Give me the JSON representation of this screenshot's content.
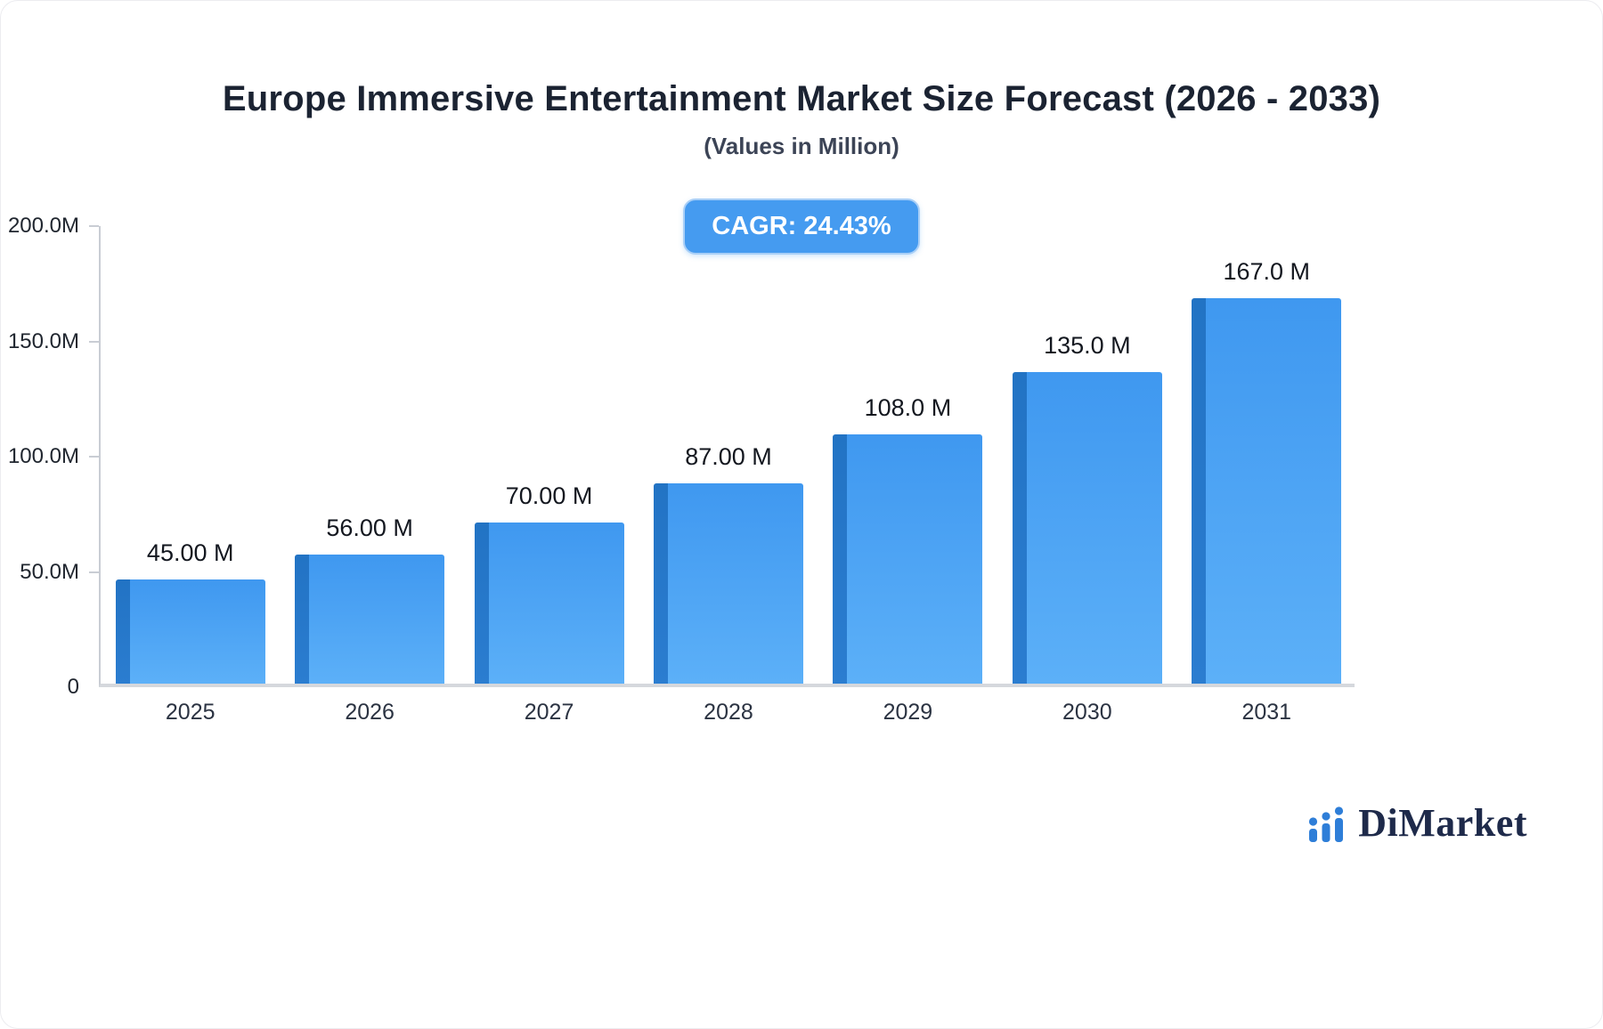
{
  "header": {
    "title": "Europe Immersive Entertainment Market Size Forecast (2026 - 2033)",
    "subtitle": "(Values in Million)",
    "cagr_label": "CAGR: 24.43%"
  },
  "logo": {
    "text": "DiMarket"
  },
  "colors": {
    "bar_face_top": "#3f98f0",
    "bar_face_bottom": "#5cb0f8",
    "bar_side": "#2273c4",
    "badge_blue": "#459bf0",
    "title_text": "#1b2332",
    "logo_navy": "#1e2a4a",
    "logo_icon_blue": "#2e7ed8"
  },
  "chart_data": {
    "type": "bar",
    "title": "Europe Immersive Entertainment Market Size Forecast (2026 - 2033)",
    "subtitle": "(Values in Million)",
    "annotation": "CAGR: 24.43%",
    "categories": [
      "2025",
      "2026",
      "2027",
      "2028",
      "2029",
      "2030",
      "2031"
    ],
    "values": [
      45,
      56,
      70,
      87,
      108,
      135,
      167
    ],
    "value_labels": [
      "45.00 M",
      "56.00 M",
      "70.00 M",
      "87.00 M",
      "108.0 M",
      "135.0 M",
      "167.0 M"
    ],
    "xlabel": "",
    "ylabel": "",
    "ylim": [
      0,
      200
    ],
    "yticks": [
      {
        "label": "200.0M",
        "value": 200
      },
      {
        "label": "150.0M",
        "value": 150
      },
      {
        "label": "100.0M",
        "value": 100
      },
      {
        "label": "50.0M",
        "value": 50
      },
      {
        "label": "0",
        "value": 0
      }
    ],
    "grid": false,
    "legend": false
  }
}
